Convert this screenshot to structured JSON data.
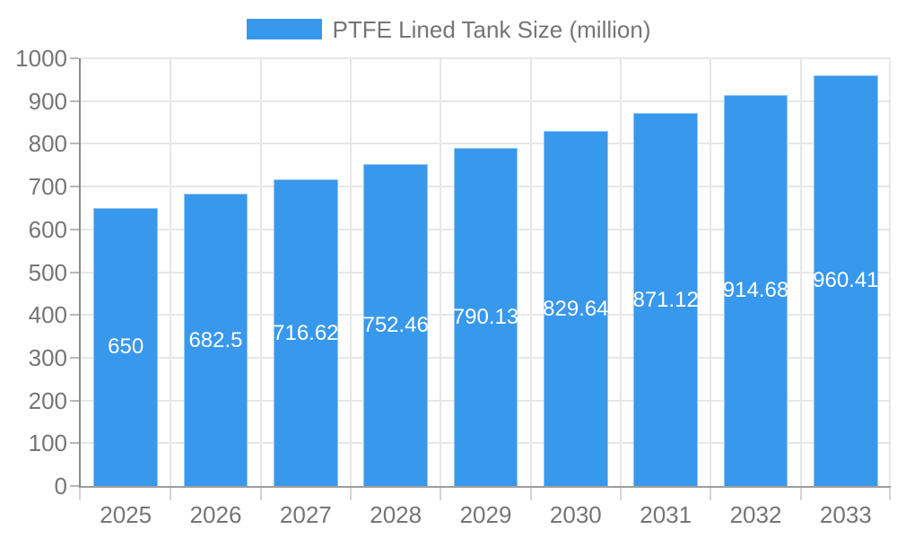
{
  "legend": {
    "label": "PTFE Lined Tank Size (million)"
  },
  "chart_data": {
    "type": "bar",
    "title": "PTFE Lined Tank Size (million)",
    "xlabel": "",
    "ylabel": "",
    "categories": [
      "2025",
      "2026",
      "2027",
      "2028",
      "2029",
      "2030",
      "2031",
      "2032",
      "2033"
    ],
    "series": [
      {
        "name": "PTFE Lined Tank Size (million)",
        "values": [
          650,
          682.5,
          716.62,
          752.46,
          790.13,
          829.64,
          871.12,
          914.68,
          960.41
        ],
        "value_labels": [
          "650",
          "682.5",
          "716.62",
          "752.46",
          "790.13",
          "829.64",
          "871.12",
          "914.68",
          "960.41"
        ]
      }
    ],
    "ylim": [
      0,
      1000
    ],
    "yticks": [
      0,
      100,
      200,
      300,
      400,
      500,
      600,
      700,
      800,
      900,
      1000
    ],
    "grid": true,
    "legend_position": "top",
    "colors": {
      "bar_fill": "#3898EC",
      "bar_label_text": "#ffffff",
      "axis_text": "#757575",
      "gridline": "#e7e7e7",
      "y_axis_line": "#8c8c8c",
      "x_axis_line": "#9e9e9e"
    }
  }
}
